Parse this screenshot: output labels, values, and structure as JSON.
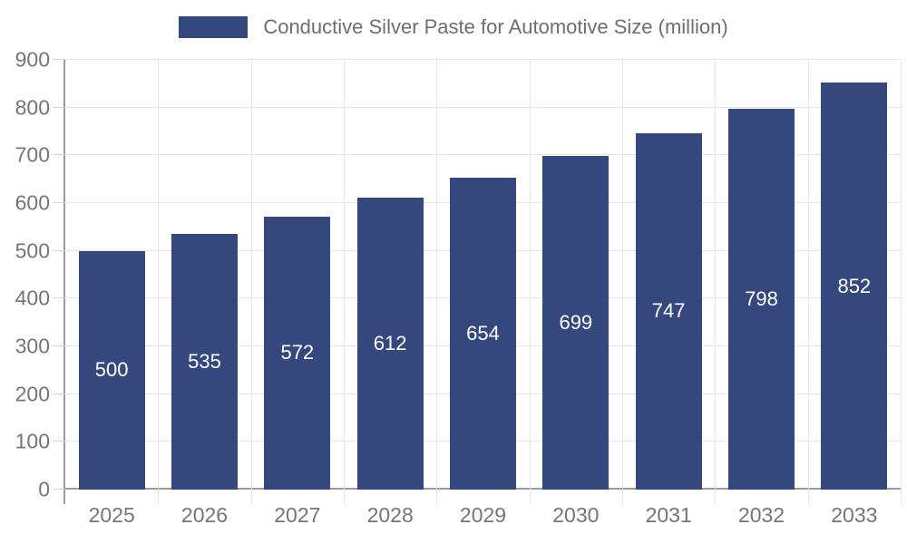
{
  "chart_data": {
    "type": "bar",
    "title": "Conductive Silver Paste for Automotive Size (million)",
    "legend_entries": [
      "Conductive Silver Paste for Automotive Size (million)"
    ],
    "legend_position": "top-center",
    "categories": [
      "2025",
      "2026",
      "2027",
      "2028",
      "2029",
      "2030",
      "2031",
      "2032",
      "2033"
    ],
    "values": [
      500,
      535,
      572,
      612,
      654,
      699,
      747,
      798,
      852
    ],
    "xlabel": "",
    "ylabel": "",
    "ylim": [
      0,
      900
    ],
    "ytick_step": 100,
    "yticks": [
      0,
      100,
      200,
      300,
      400,
      500,
      600,
      700,
      800,
      900
    ],
    "grid": true,
    "colors": {
      "bar": "#35487e",
      "value_label": "#ffffff",
      "axis_text": "#757575",
      "legend_text": "#6e6e6e",
      "gridline": "#e6e6e6",
      "tick": "#d6d6d6",
      "axis_line": "#9b9b9b"
    }
  }
}
